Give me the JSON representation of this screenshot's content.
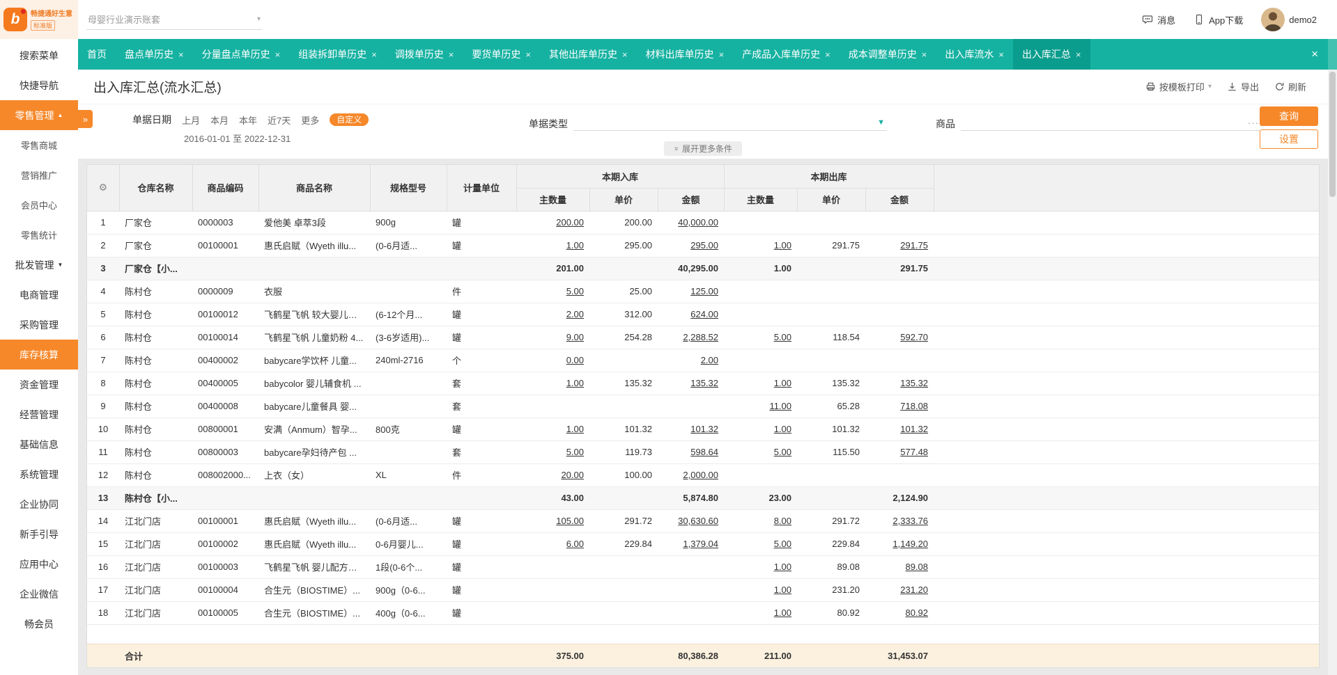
{
  "brand": {
    "glyph": "b",
    "name": "畅捷通好生意",
    "edition": "标准版"
  },
  "icons": {
    "chevron_down": "▾",
    "caret_down": "▼",
    "caret_up": "▲",
    "close": "×",
    "gear": "⚙",
    "collapse": "»",
    "double_chevron": "»",
    "ellipsis": "···"
  },
  "colors": {
    "teal": "#16b2a1",
    "teal_dark": "#0a9d8d",
    "orange": "#f6882a"
  },
  "topbar": {
    "account": "母婴行业演示账套",
    "messages": "消息",
    "app_download": "App下载",
    "username": "demo2"
  },
  "sidebar": {
    "items": [
      {
        "label": "搜索菜单",
        "type": "plain"
      },
      {
        "label": "快捷导航",
        "type": "plain"
      },
      {
        "label": "零售管理",
        "type": "group-active",
        "arrow": "▲"
      },
      {
        "label": "零售商城",
        "type": "sub"
      },
      {
        "label": "营销推广",
        "type": "sub"
      },
      {
        "label": "会员中心",
        "type": "sub"
      },
      {
        "label": "零售统计",
        "type": "sub"
      },
      {
        "label": "批发管理",
        "type": "plain",
        "arrow": "▼"
      },
      {
        "label": "电商管理",
        "type": "plain"
      },
      {
        "label": "采购管理",
        "type": "plain"
      },
      {
        "label": "库存核算",
        "type": "active"
      },
      {
        "label": "资金管理",
        "type": "plain"
      },
      {
        "label": "经营管理",
        "type": "plain"
      },
      {
        "label": "基础信息",
        "type": "plain"
      },
      {
        "label": "系统管理",
        "type": "plain"
      },
      {
        "label": "企业协同",
        "type": "plain"
      },
      {
        "label": "新手引导",
        "type": "plain"
      },
      {
        "label": "应用中心",
        "type": "plain"
      },
      {
        "label": "企业微信",
        "type": "plain"
      },
      {
        "label": "畅会员",
        "type": "plain"
      }
    ]
  },
  "tabs": [
    {
      "label": "首页",
      "closable": false,
      "active": false
    },
    {
      "label": "盘点单历史",
      "closable": true,
      "active": false
    },
    {
      "label": "分量盘点单历史",
      "closable": true,
      "active": false
    },
    {
      "label": "组装拆卸单历史",
      "closable": true,
      "active": false
    },
    {
      "label": "调拨单历史",
      "closable": true,
      "active": false
    },
    {
      "label": "要货单历史",
      "closable": true,
      "active": false
    },
    {
      "label": "其他出库单历史",
      "closable": true,
      "active": false
    },
    {
      "label": "材料出库单历史",
      "closable": true,
      "active": false
    },
    {
      "label": "产成品入库单历史",
      "closable": true,
      "active": false
    },
    {
      "label": "成本调整单历史",
      "closable": true,
      "active": false
    },
    {
      "label": "出入库流水",
      "closable": true,
      "active": false
    },
    {
      "label": "出入库汇总",
      "closable": true,
      "active": true
    }
  ],
  "page": {
    "title": "出入库汇总(流水汇总)",
    "actions": {
      "print": "按模板打印",
      "export": "导出",
      "refresh": "刷新"
    }
  },
  "filters": {
    "date_label": "单据日期",
    "date_quick": [
      "上月",
      "本月",
      "本年",
      "近7天",
      "更多"
    ],
    "date_custom": "自定义",
    "date_range": "2016-01-01 至 2022-12-31",
    "doc_type_label": "单据类型",
    "product_label": "商品",
    "search_button": "查询",
    "settings_button": "设置",
    "expand_more": "展开更多条件"
  },
  "table": {
    "header": {
      "warehouse": "仓库名称",
      "code": "商品编码",
      "name": "商品名称",
      "spec": "规格型号",
      "unit": "计量单位",
      "group_in": "本期入库",
      "group_out": "本期出库",
      "qty": "主数量",
      "price": "单价",
      "amount": "金额"
    },
    "rows": [
      {
        "type": "data",
        "num": "1",
        "warehouse": "厂家仓",
        "code": "0000003",
        "name": "爱他美 卓萃3段",
        "spec": "900g",
        "unit": "罐",
        "in_qty": "200.00",
        "in_price": "200.00",
        "in_amount": "40,000.00",
        "out_qty": "",
        "out_price": "",
        "out_amount": ""
      },
      {
        "type": "data",
        "num": "2",
        "warehouse": "厂家仓",
        "code": "00100001",
        "name": "惠氏启赋（Wyeth illu...",
        "spec": "(0-6月适...",
        "unit": "罐",
        "in_qty": "1.00",
        "in_price": "295.00",
        "in_amount": "295.00",
        "out_qty": "1.00",
        "out_price": "291.75",
        "out_amount": "291.75"
      },
      {
        "type": "subtotal",
        "num": "3",
        "warehouse": "厂家仓【小...",
        "code": "",
        "name": "",
        "spec": "",
        "unit": "",
        "in_qty": "201.00",
        "in_price": "",
        "in_amount": "40,295.00",
        "out_qty": "1.00",
        "out_price": "",
        "out_amount": "291.75"
      },
      {
        "type": "data",
        "num": "4",
        "warehouse": "陈村仓",
        "code": "0000009",
        "name": "衣服",
        "spec": "",
        "unit": "件",
        "in_qty": "5.00",
        "in_price": "25.00",
        "in_amount": "125.00",
        "out_qty": "",
        "out_price": "",
        "out_amount": ""
      },
      {
        "type": "data",
        "num": "5",
        "warehouse": "陈村仓",
        "code": "00100012",
        "name": "飞鹤星飞帆 较大婴儿配...",
        "spec": "(6-12个月...",
        "unit": "罐",
        "in_qty": "2.00",
        "in_price": "312.00",
        "in_amount": "624.00",
        "out_qty": "",
        "out_price": "",
        "out_amount": ""
      },
      {
        "type": "data",
        "num": "6",
        "warehouse": "陈村仓",
        "code": "00100014",
        "name": "飞鹤星飞帆 儿童奶粉 4...",
        "spec": "(3-6岁适用)...",
        "unit": "罐",
        "in_qty": "9.00",
        "in_price": "254.28",
        "in_amount": "2,288.52",
        "out_qty": "5.00",
        "out_price": "118.54",
        "out_amount": "592.70"
      },
      {
        "type": "data",
        "num": "7",
        "warehouse": "陈村仓",
        "code": "00400002",
        "name": "babycare学饮杯 儿童...",
        "spec": "240ml-2716",
        "unit": "个",
        "in_qty": "0.00",
        "in_price": "",
        "in_amount": "2.00",
        "out_qty": "",
        "out_price": "",
        "out_amount": ""
      },
      {
        "type": "data",
        "num": "8",
        "warehouse": "陈村仓",
        "code": "00400005",
        "name": "babycolor 婴儿辅食机 ...",
        "spec": "",
        "unit": "套",
        "in_qty": "1.00",
        "in_price": "135.32",
        "in_amount": "135.32",
        "out_qty": "1.00",
        "out_price": "135.32",
        "out_amount": "135.32"
      },
      {
        "type": "data",
        "num": "9",
        "warehouse": "陈村仓",
        "code": "00400008",
        "name": "babycare儿童餐具 婴...",
        "spec": "",
        "unit": "套",
        "in_qty": "",
        "in_price": "",
        "in_amount": "",
        "out_qty": "11.00",
        "out_price": "65.28",
        "out_amount": "718.08"
      },
      {
        "type": "data",
        "num": "10",
        "warehouse": "陈村仓",
        "code": "00800001",
        "name": "安满（Anmum）智孕...",
        "spec": "800克",
        "unit": "罐",
        "in_qty": "1.00",
        "in_price": "101.32",
        "in_amount": "101.32",
        "out_qty": "1.00",
        "out_price": "101.32",
        "out_amount": "101.32"
      },
      {
        "type": "data",
        "num": "11",
        "warehouse": "陈村仓",
        "code": "00800003",
        "name": "babycare孕妇待产包 ...",
        "spec": "",
        "unit": "套",
        "in_qty": "5.00",
        "in_price": "119.73",
        "in_amount": "598.64",
        "out_qty": "5.00",
        "out_price": "115.50",
        "out_amount": "577.48"
      },
      {
        "type": "data",
        "num": "12",
        "warehouse": "陈村仓",
        "code": "008002000...",
        "name": "上衣（女）",
        "spec": "XL",
        "unit": "件",
        "in_qty": "20.00",
        "in_price": "100.00",
        "in_amount": "2,000.00",
        "out_qty": "",
        "out_price": "",
        "out_amount": ""
      },
      {
        "type": "subtotal",
        "num": "13",
        "warehouse": "陈村仓【小...",
        "code": "",
        "name": "",
        "spec": "",
        "unit": "",
        "in_qty": "43.00",
        "in_price": "",
        "in_amount": "5,874.80",
        "out_qty": "23.00",
        "out_price": "",
        "out_amount": "2,124.90"
      },
      {
        "type": "data",
        "num": "14",
        "warehouse": "江北门店",
        "code": "00100001",
        "name": "惠氏启赋（Wyeth illu...",
        "spec": "(0-6月适...",
        "unit": "罐",
        "in_qty": "105.00",
        "in_price": "291.72",
        "in_amount": "30,630.60",
        "out_qty": "8.00",
        "out_price": "291.72",
        "out_amount": "2,333.76"
      },
      {
        "type": "data",
        "num": "15",
        "warehouse": "江北门店",
        "code": "00100002",
        "name": "惠氏启赋（Wyeth illu...",
        "spec": "0-6月婴儿...",
        "unit": "罐",
        "in_qty": "6.00",
        "in_price": "229.84",
        "in_amount": "1,379.04",
        "out_qty": "5.00",
        "out_price": "229.84",
        "out_amount": "1,149.20"
      },
      {
        "type": "data",
        "num": "16",
        "warehouse": "江北门店",
        "code": "00100003",
        "name": "飞鹤星飞帆 婴儿配方奶...",
        "spec": "1段(0-6个...",
        "unit": "罐",
        "in_qty": "",
        "in_price": "",
        "in_amount": "",
        "out_qty": "1.00",
        "out_price": "89.08",
        "out_amount": "89.08"
      },
      {
        "type": "data",
        "num": "17",
        "warehouse": "江北门店",
        "code": "00100004",
        "name": "合生元（BIOSTIME）...",
        "spec": "900g（0-6...",
        "unit": "罐",
        "in_qty": "",
        "in_price": "",
        "in_amount": "",
        "out_qty": "1.00",
        "out_price": "231.20",
        "out_amount": "231.20"
      },
      {
        "type": "data",
        "num": "18",
        "warehouse": "江北门店",
        "code": "00100005",
        "name": "合生元（BIOSTIME）...",
        "spec": "400g（0-6...",
        "unit": "罐",
        "in_qty": "",
        "in_price": "",
        "in_amount": "",
        "out_qty": "1.00",
        "out_price": "80.92",
        "out_amount": "80.92"
      }
    ],
    "total": {
      "label": "合计",
      "in_qty": "375.00",
      "in_amount": "80,386.28",
      "out_qty": "211.00",
      "out_amount": "31,453.07"
    }
  }
}
